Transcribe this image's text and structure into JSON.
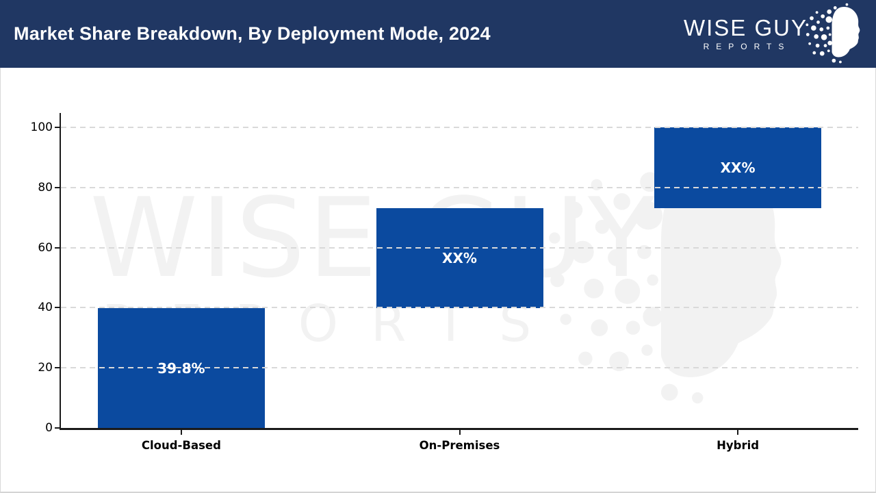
{
  "header": {
    "title": "Market Share Breakdown, By Deployment Mode, 2024",
    "logo": {
      "line1": "WISE GUY",
      "line2": "REPORTS"
    }
  },
  "watermark": {
    "line1": "WISE GUY",
    "line2": "REPORTS"
  },
  "colors": {
    "header_bg": "#203763",
    "bar": "#0b4a9f",
    "bar_label": "#ffffff",
    "gridline": "#d9d9d9",
    "axis": "#1a1a1a",
    "watermark": "#f2f2f2"
  },
  "chart_data": {
    "type": "bar",
    "subtype": "waterfall-breakdown",
    "title": "Market Share Breakdown, By Deployment Mode, 2024",
    "categories": [
      "Cloud-Based",
      "On-Premises",
      "Hybrid"
    ],
    "segments": [
      {
        "category": "Cloud-Based",
        "start": 0,
        "end": 39.8,
        "label": "39.8%"
      },
      {
        "category": "On-Premises",
        "start": 39.8,
        "end": 73.1,
        "label": "XX%"
      },
      {
        "category": "Hybrid",
        "start": 73.1,
        "end": 100,
        "label": "XX%"
      }
    ],
    "xlabel": "",
    "ylabel": "",
    "yticks": [
      0,
      20,
      40,
      60,
      80,
      100
    ],
    "ylim": [
      0,
      105
    ],
    "grid": "dashed-horizontal",
    "legend": "none",
    "bar_color": "#0b4a9f",
    "value_label_color": "#ffffff"
  }
}
